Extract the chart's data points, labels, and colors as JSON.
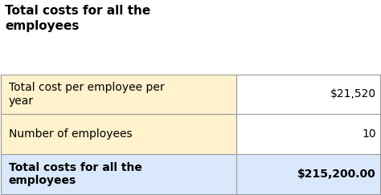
{
  "title": "Total costs for all the\nemployees",
  "rows": [
    {
      "label": "Total cost per employee per\nyear",
      "value": "$21,520",
      "label_bg": "#FFF2CC",
      "value_bg": "#FFFFFF",
      "bold": false
    },
    {
      "label": "Number of employees",
      "value": "10",
      "label_bg": "#FFF2CC",
      "value_bg": "#FFFFFF",
      "bold": false
    },
    {
      "label": "Total costs for all the\nemployees",
      "value": "$215,200.00",
      "label_bg": "#DAE8FC",
      "value_bg": "#DAE8FC",
      "bold": true
    }
  ],
  "bg_color": "#FFFFFF",
  "title_color": "#000000",
  "border_color": "#999999",
  "col_split": 0.62,
  "title_fontsize": 11,
  "cell_fontsize": 10
}
